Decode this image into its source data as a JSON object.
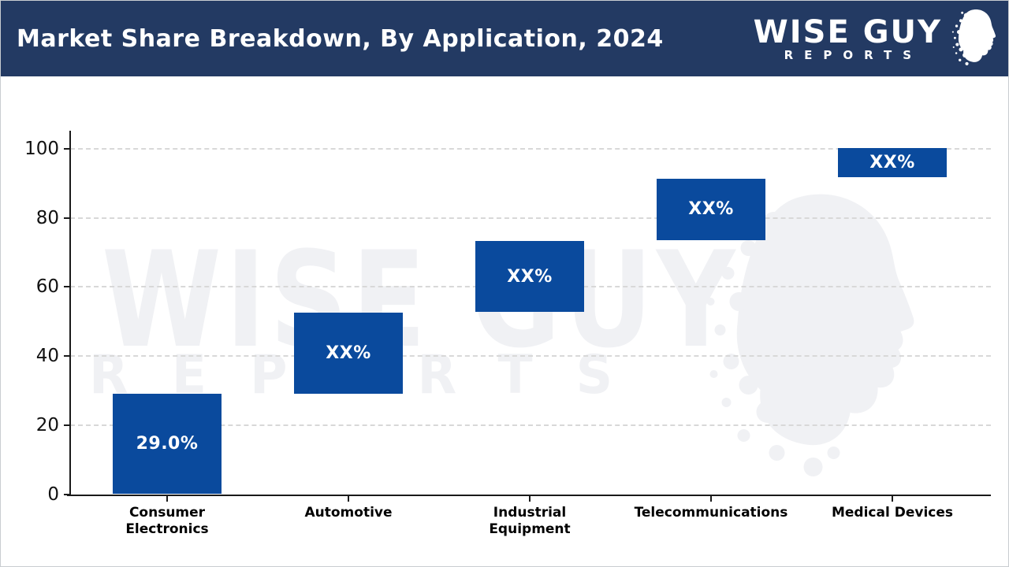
{
  "header": {
    "title": "Market Share Breakdown, By Application, 2024",
    "logo": {
      "line1": "WISE GUY",
      "line2": "REPORTS"
    }
  },
  "watermark": {
    "line1": "WISE GUY",
    "line2": "REPORTS"
  },
  "colors": {
    "header_bg": "#233a63",
    "bar": "#0a4a9d",
    "grid": "#d8d8d8",
    "axis": "#1a1a1a",
    "bar_label_text": "#ffffff",
    "watermark": "#f0f1f4"
  },
  "chart_data": {
    "type": "bar",
    "subtype": "waterfall",
    "title": "Market Share Breakdown, By Application, 2024",
    "xlabel": "",
    "ylabel": "",
    "ylim": [
      0,
      105
    ],
    "yticks": [
      0,
      20,
      40,
      60,
      80,
      100
    ],
    "grid": "horizontal-dashed",
    "legend": "none",
    "categories": [
      "Consumer Electronics",
      "Automotive",
      "Industrial Equipment",
      "Telecommunications",
      "Medical Devices"
    ],
    "categories_lines": [
      [
        "Consumer",
        "Electronics"
      ],
      [
        "Automotive"
      ],
      [
        "Industrial",
        "Equipment"
      ],
      [
        "Telecommunications"
      ],
      [
        "Medical Devices"
      ]
    ],
    "segments": [
      {
        "category": "Consumer Electronics",
        "start": 0,
        "end": 29,
        "label": "29.0%"
      },
      {
        "category": "Automotive",
        "start": 29,
        "end": 52.5,
        "label": "XX%"
      },
      {
        "category": "Industrial Equipment",
        "start": 52.7,
        "end": 73.3,
        "label": "XX%"
      },
      {
        "category": "Telecommunications",
        "start": 73.4,
        "end": 91.4,
        "label": "XX%"
      },
      {
        "category": "Medical Devices",
        "start": 91.7,
        "end": 100.2,
        "label": "XX%"
      }
    ]
  }
}
